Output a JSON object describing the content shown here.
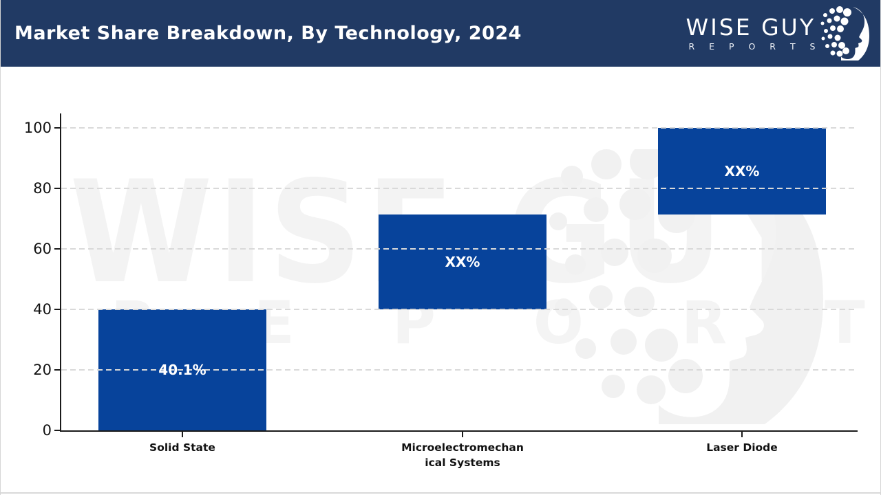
{
  "header": {
    "title": "Market Share Breakdown, By Technology, 2024",
    "logo": {
      "line1": "WISE GUY",
      "line2": "R E P O R T S"
    }
  },
  "watermark": {
    "line1": "WISE GUY",
    "line2": "R E P O R T S"
  },
  "colors": {
    "header_bg": "#213a64",
    "bar": "#07439b",
    "grid": "#d9d9d9",
    "axis": "#1a1a1a",
    "bar_label": "#ffffff",
    "watermark": "#f3f3f3"
  },
  "chart_data": {
    "type": "bar",
    "subtype": "floating-segment-bars",
    "title": "Market Share Breakdown, By Technology, 2024",
    "categories": [
      "Solid State",
      "Microelectromechan\nical Systems",
      "Laser Diode"
    ],
    "segments": [
      {
        "category": "Solid State",
        "start": 0,
        "end": 40.1,
        "label": "40.1%"
      },
      {
        "category": "Microelectromechanical Systems",
        "start": 40.1,
        "end": 71.4,
        "label": "XX%"
      },
      {
        "category": "Laser Diode",
        "start": 71.4,
        "end": 100,
        "label": "XX%"
      }
    ],
    "xlabel": "",
    "ylabel": "",
    "ylim": [
      0,
      105
    ],
    "yticks": [
      0,
      20,
      40,
      60,
      80,
      100
    ],
    "grid": "horizontal dashed, drawn above bars",
    "legend": "none",
    "bar_color": "#07439b",
    "label_color": "#ffffff"
  }
}
